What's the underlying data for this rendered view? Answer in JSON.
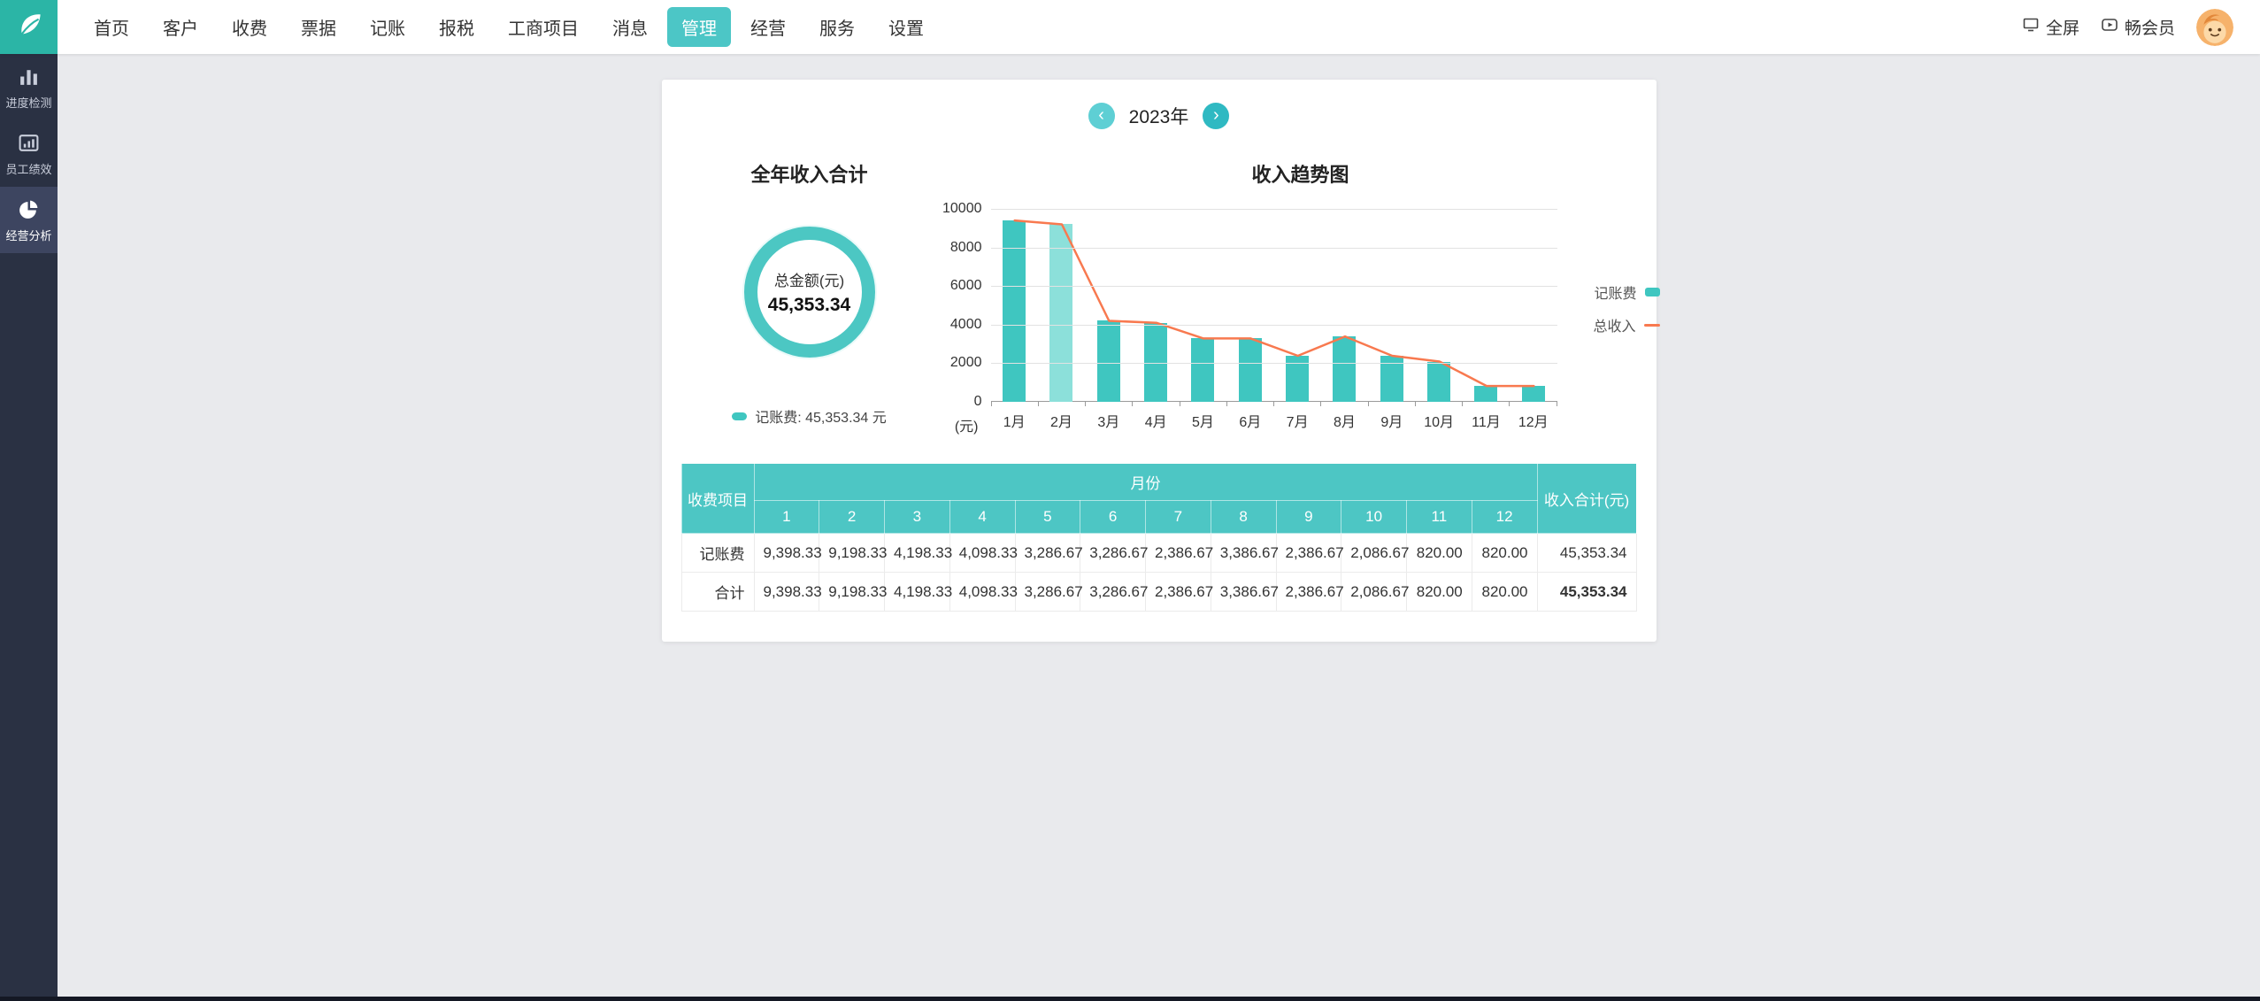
{
  "topnav": {
    "items": [
      {
        "label": "首页",
        "active": false
      },
      {
        "label": "客户",
        "active": false
      },
      {
        "label": "收费",
        "active": false
      },
      {
        "label": "票据",
        "active": false
      },
      {
        "label": "记账",
        "active": false
      },
      {
        "label": "报税",
        "active": false
      },
      {
        "label": "工商项目",
        "active": false
      },
      {
        "label": "消息",
        "active": false
      },
      {
        "label": "管理",
        "active": true
      },
      {
        "label": "经营",
        "active": false
      },
      {
        "label": "服务",
        "active": false
      },
      {
        "label": "设置",
        "active": false
      }
    ],
    "fullscreen_label": "全屏",
    "member_label": "畅会员"
  },
  "sidebar": {
    "items": [
      {
        "label": "进度检测",
        "icon": "bar-chart-icon",
        "active": false
      },
      {
        "label": "员工绩效",
        "icon": "performance-card-icon",
        "active": false
      },
      {
        "label": "经营分析",
        "icon": "pie-chart-icon",
        "active": true
      }
    ]
  },
  "main": {
    "year": "2023年",
    "summary": {
      "title": "全年收入合计",
      "donut_label": "总金额(元)",
      "donut_value": "45,353.34",
      "legend_text": "记账费: 45,353.34 元"
    }
  },
  "chart_data": {
    "type": "bar+line",
    "title": "收入趋势图",
    "categories": [
      "1月",
      "2月",
      "3月",
      "4月",
      "5月",
      "6月",
      "7月",
      "8月",
      "9月",
      "10月",
      "11月",
      "12月"
    ],
    "series": [
      {
        "name": "记账费",
        "type": "bar",
        "color": "#3fc6c0",
        "values": [
          9398.33,
          9198.33,
          4198.33,
          4098.33,
          3286.67,
          3286.67,
          2386.67,
          3386.67,
          2386.67,
          2086.67,
          820.0,
          820.0
        ]
      },
      {
        "name": "总收入",
        "type": "line",
        "color": "#f8794f",
        "values": [
          9398.33,
          9198.33,
          4198.33,
          4098.33,
          3286.67,
          3286.67,
          2386.67,
          3386.67,
          2386.67,
          2086.67,
          820.0,
          820.0
        ]
      }
    ],
    "highlight_bar_index": 1,
    "highlight_bar_color": "#8ce0da",
    "ylabel": "(元)",
    "ylim": [
      0,
      10000
    ],
    "yticks": [
      0,
      2000,
      4000,
      6000,
      8000,
      10000
    ],
    "legend_position": "right",
    "grid": true
  },
  "table": {
    "corner_header": "收费项目",
    "months_header": "月份",
    "total_header": "收入合计(元)",
    "month_columns": [
      "1",
      "2",
      "3",
      "4",
      "5",
      "6",
      "7",
      "8",
      "9",
      "10",
      "11",
      "12"
    ],
    "rows": [
      {
        "label": "记账费",
        "values": [
          "9,398.33",
          "9,198.33",
          "4,198.33",
          "4,098.33",
          "3,286.67",
          "3,286.67",
          "2,386.67",
          "3,386.67",
          "2,386.67",
          "2,086.67",
          "820.00",
          "820.00"
        ],
        "total": "45,353.34",
        "bold_total": false
      },
      {
        "label": "合计",
        "values": [
          "9,398.33",
          "9,198.33",
          "4,198.33",
          "4,098.33",
          "3,286.67",
          "3,286.67",
          "2,386.67",
          "3,386.67",
          "2,386.67",
          "2,086.67",
          "820.00",
          "820.00"
        ],
        "total": "45,353.34",
        "bold_total": true
      }
    ]
  }
}
